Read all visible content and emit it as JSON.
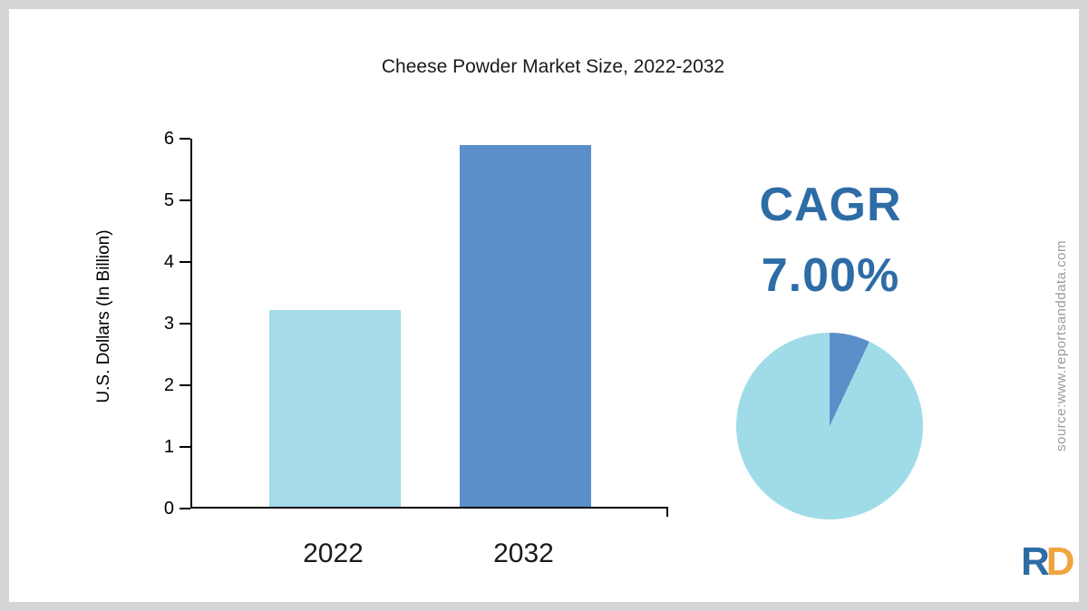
{
  "title": "Cheese Powder Market Size, 2022-2032",
  "chart_data": {
    "type": "bar",
    "title": "Cheese Powder Market Size, 2022-2032",
    "categories": [
      "2022",
      "2032"
    ],
    "values": [
      3.2,
      5.9
    ],
    "xlabel": "",
    "ylabel": "U.S. Dollars (In Billion)",
    "ylim": [
      0,
      6
    ],
    "yticks": [
      "0",
      "1",
      "2",
      "3",
      "4",
      "5",
      "6"
    ],
    "bar_colors": [
      "#a5dbe8",
      "#5b8fc9"
    ],
    "grid": "off",
    "legend": "none"
  },
  "cagr": {
    "label": "CAGR",
    "value": "7.00%",
    "color": "#2d6ca5",
    "pie_percent": 7,
    "slice_color": "#5b8fc9",
    "remainder_color": "#a0dce8"
  },
  "source": "source:www.reportsanddata.com",
  "logo": {
    "r": "R",
    "d": "D"
  }
}
